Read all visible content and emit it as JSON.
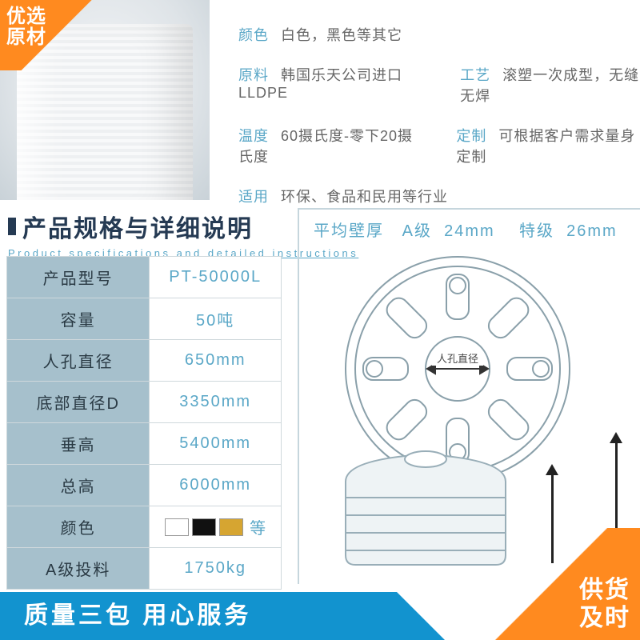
{
  "badges": {
    "top_left_line1": "优选",
    "top_left_line2": "原材",
    "bottom_right_line1": "供货",
    "bottom_right_line2": "及时"
  },
  "ribbon": {
    "text": "质量三包  用心服务"
  },
  "colors": {
    "brand_orange": "#ff8a1f",
    "ribbon_blue": "#1293cf",
    "header_blue": "#5aa7c7",
    "table_header_bg": "#a6c0cc",
    "dark_navy": "#253a53"
  },
  "attributes": {
    "color_k": "颜色",
    "color_v": "白色，黑色等其它",
    "material_k": "原料",
    "material_v": "韩国乐天公司进口LLDPE",
    "process_k": "工艺",
    "process_v": "滚塑一次成型，无缝无焊",
    "temp_k": "温度",
    "temp_v": "60摄氏度-零下20摄氏度",
    "custom_k": "定制",
    "custom_v": "可根据客户需求量身定制",
    "use_k": "适用",
    "use_v": "环保、食品和民用等行业"
  },
  "section": {
    "cn": "产品规格与详细说明",
    "en": "Product specifications and detailed instructions"
  },
  "spec_table": {
    "rows": [
      {
        "label": "产品型号",
        "value": "PT-50000L"
      },
      {
        "label": "容量",
        "value": "50吨"
      },
      {
        "label": "人孔直径",
        "value": "650mm"
      },
      {
        "label": "底部直径D",
        "value": "3350mm"
      },
      {
        "label": "垂高",
        "value": "5400mm"
      },
      {
        "label": "总高",
        "value": "6000mm"
      },
      {
        "label": "颜色",
        "value": "__SWATCHES__"
      },
      {
        "label": "A级投料",
        "value": "1750kg"
      }
    ],
    "swatch_suffix": "等",
    "swatch_colors": [
      "#ffffff",
      "#111111",
      "#d6a531"
    ]
  },
  "diagram": {
    "thickness_line_prefix": "平均壁厚",
    "grade_a_label": "A级",
    "grade_a_val": "24mm",
    "grade_s_label": "特级",
    "grade_s_val": "26mm",
    "manhole_label": "人孔直径"
  }
}
